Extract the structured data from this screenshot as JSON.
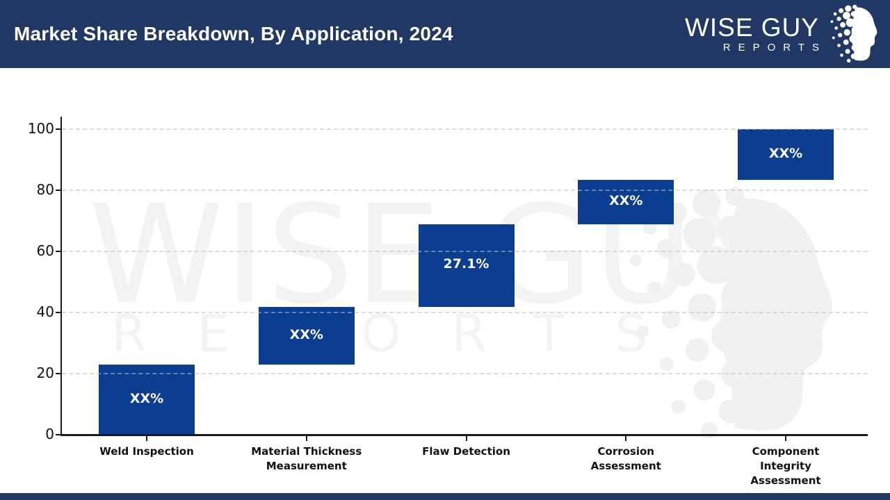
{
  "header": {
    "title": "Market Share Breakdown, By Application, 2024",
    "logo_line1": "WISE GUY",
    "logo_line2": "REPORTS"
  },
  "watermark": {
    "line1": "WISE GUY",
    "line2": "REPORTS"
  },
  "colors": {
    "header_bg": "#213865",
    "bar": "#0b3d91",
    "bar_label": "#ffffff",
    "watermark": "#f3f3f3"
  },
  "chart_data": {
    "type": "bar",
    "subtype": "waterfall-floating-bars",
    "title": "Market Share Breakdown, By Application, 2024",
    "categories": [
      [
        "Weld Inspection"
      ],
      [
        "Material Thickness",
        "Measurement"
      ],
      [
        "Flaw Detection"
      ],
      [
        "Corrosion",
        "Assessment"
      ],
      [
        "Component",
        "Integrity",
        "Assessment"
      ]
    ],
    "segments": [
      {
        "category": "Weld Inspection",
        "start": 0,
        "end": 22.9,
        "value": 22.9,
        "label": "XX%"
      },
      {
        "category": "Material Thickness Measurement",
        "start": 22.9,
        "end": 41.8,
        "value": 18.9,
        "label": "XX%"
      },
      {
        "category": "Flaw Detection",
        "start": 41.8,
        "end": 68.9,
        "value": 27.1,
        "label": "27.1%"
      },
      {
        "category": "Corrosion Assessment",
        "start": 68.9,
        "end": 83.4,
        "value": 14.5,
        "label": "XX%"
      },
      {
        "category": "Component Integrity Assessment",
        "start": 83.4,
        "end": 100,
        "value": 16.6,
        "label": "XX%"
      }
    ],
    "yticks": [
      0,
      20,
      40,
      60,
      80,
      100
    ],
    "ylim": [
      0,
      104
    ],
    "xlabel": "",
    "ylabel": "",
    "grid": "horizontal-dashed",
    "legend": "none"
  }
}
